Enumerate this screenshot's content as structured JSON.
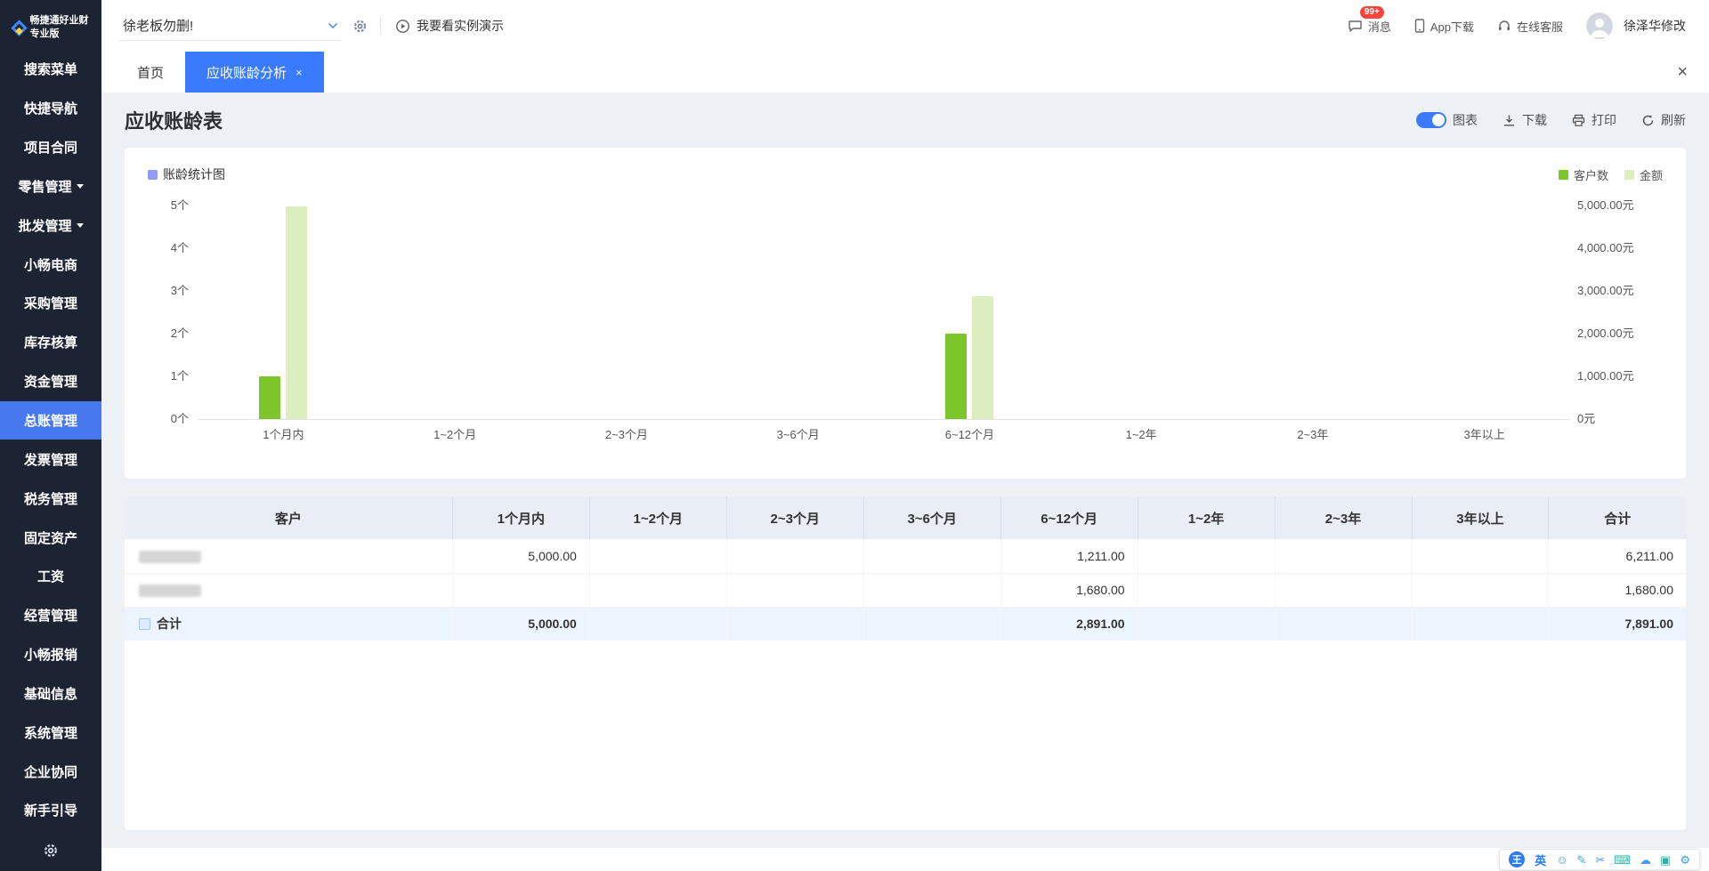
{
  "colors": {
    "accent": "#3a7bfd",
    "sidebar_bg": "#1c2434",
    "sidebar_active": "#4878f0",
    "bar_customers": "#7cc62b",
    "bar_amount": "#dcedbe",
    "badge_red": "#f5453d",
    "table_header_bg": "#e9edf6",
    "total_row_bg": "#ecf5fd"
  },
  "sidebar": {
    "logo_line1": "畅捷通好业财",
    "logo_line2": "专业版",
    "items": [
      {
        "label": "搜索菜单"
      },
      {
        "label": "快捷导航"
      },
      {
        "label": "项目合同"
      },
      {
        "label": "零售管理",
        "has_arrow": true
      },
      {
        "label": "批发管理",
        "has_arrow": true
      },
      {
        "label": "小畅电商"
      },
      {
        "label": "采购管理"
      },
      {
        "label": "库存核算"
      },
      {
        "label": "资金管理"
      },
      {
        "label": "总账管理",
        "active": true
      },
      {
        "label": "发票管理"
      },
      {
        "label": "税务管理"
      },
      {
        "label": "固定资产"
      },
      {
        "label": "工资"
      },
      {
        "label": "经营管理"
      },
      {
        "label": "小畅报销"
      },
      {
        "label": "基础信息"
      },
      {
        "label": "系统管理"
      },
      {
        "label": "企业协同"
      },
      {
        "label": "新手引导"
      }
    ]
  },
  "topbar": {
    "company_selector": "徐老板勿删!",
    "demo_link": "我要看实例演示",
    "message_label": "消息",
    "message_badge": "99+",
    "app_download_label": "App下载",
    "support_label": "在线客服",
    "username": "徐泽华修改"
  },
  "tabbar": {
    "tabs": [
      {
        "label": "首页",
        "active": false
      },
      {
        "label": "应收账龄分析",
        "active": true,
        "closable": true
      }
    ]
  },
  "page": {
    "title": "应收账龄表",
    "toolbar": {
      "toggle_label": "图表",
      "download_label": "下载",
      "print_label": "打印",
      "refresh_label": "刷新"
    }
  },
  "chart_data": {
    "type": "bar",
    "title": "账龄统计图",
    "categories": [
      "1个月内",
      "1~2个月",
      "2~3个月",
      "3~6个月",
      "6~12个月",
      "1~2年",
      "2~3年",
      "3年以上"
    ],
    "series": [
      {
        "name": "客户数",
        "axis": "left",
        "color": "#7cc62b",
        "values": [
          1,
          0,
          0,
          0,
          2,
          0,
          0,
          0
        ]
      },
      {
        "name": "金额",
        "axis": "right",
        "color": "#dcedbe",
        "values": [
          5000,
          0,
          0,
          0,
          2891,
          0,
          0,
          0
        ]
      }
    ],
    "left_axis": {
      "max": 5,
      "ticks": [
        "0个",
        "1个",
        "2个",
        "3个",
        "4个",
        "5个"
      ]
    },
    "right_axis": {
      "max": 5000,
      "ticks": [
        "0元",
        "1,000.00元",
        "2,000.00元",
        "3,000.00元",
        "4,000.00元",
        "5,000.00元"
      ]
    },
    "legend_position": "top-right",
    "grid": false
  },
  "table": {
    "headers": [
      "客户",
      "1个月内",
      "1~2个月",
      "2~3个月",
      "3~6个月",
      "6~12个月",
      "1~2年",
      "2~3年",
      "3年以上",
      "合计"
    ],
    "rows": [
      {
        "redacted": true,
        "values": [
          "5,000.00",
          "",
          "",
          "",
          "1,211.00",
          "",
          "",
          "",
          "6,211.00"
        ]
      },
      {
        "redacted": true,
        "values": [
          "",
          "",
          "",
          "",
          "1,680.00",
          "",
          "",
          "",
          "1,680.00"
        ]
      }
    ],
    "total": {
      "label": "合计",
      "values": [
        "5,000.00",
        "",
        "",
        "",
        "2,891.00",
        "",
        "",
        "",
        "7,891.00"
      ]
    }
  },
  "ime": {
    "logo": "王",
    "lang": "英",
    "icons": [
      {
        "name": "smiley-icon",
        "glyph": "☺"
      },
      {
        "name": "handwriting-pen-icon",
        "glyph": "✎"
      },
      {
        "name": "scissors-icon",
        "glyph": "✂"
      },
      {
        "name": "keyboard-icon",
        "glyph": "⌨"
      },
      {
        "name": "cloud-icon",
        "glyph": "☁"
      },
      {
        "name": "toolbox-icon",
        "glyph": "▣"
      },
      {
        "name": "settings-gear-icon",
        "glyph": "⚙"
      }
    ]
  }
}
